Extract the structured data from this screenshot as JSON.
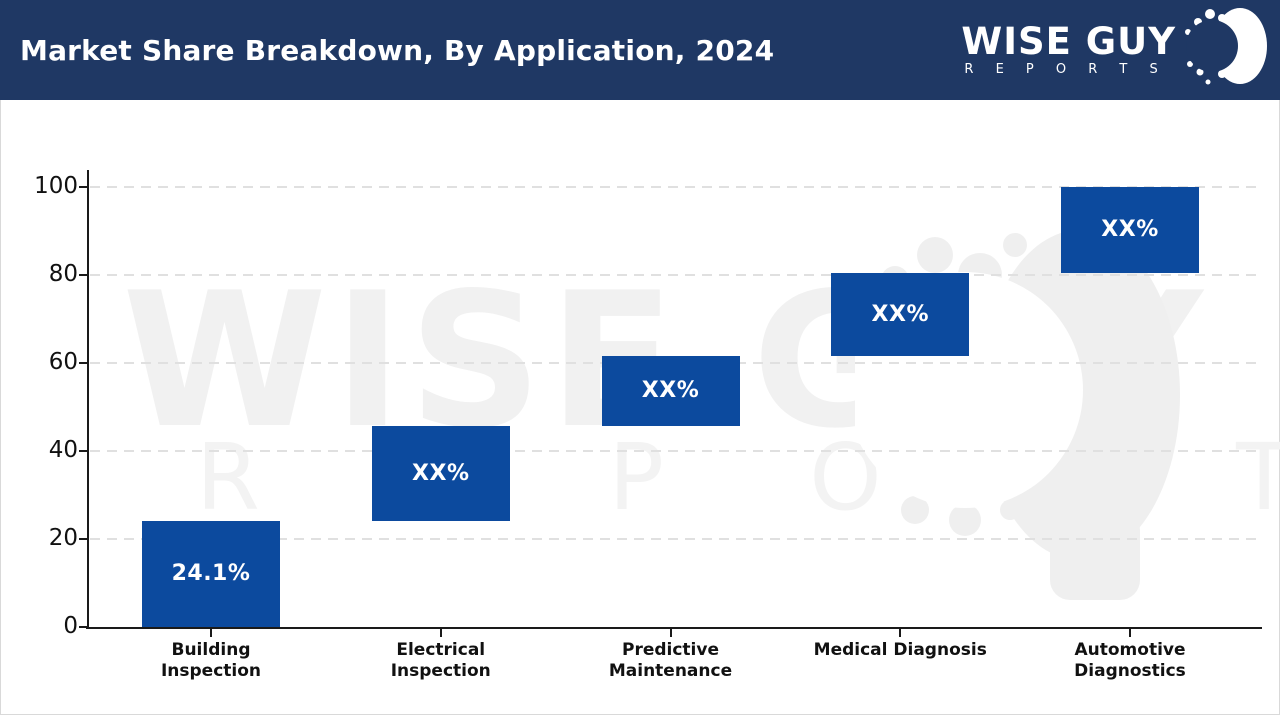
{
  "header": {
    "title": "Market Share Breakdown, By Application, 2024",
    "bg_color": "#1f3864",
    "logo": {
      "line1": "WISE GUY",
      "line2": "R E P O R T S"
    }
  },
  "watermark": {
    "line1": "WISE GUY",
    "line2": "R E P O R T S"
  },
  "chart_data": {
    "type": "bar",
    "subtype": "waterfall",
    "title": "Market Share Breakdown, By Application, 2024",
    "categories": [
      "Building Inspection",
      "Electrical Inspection",
      "Predictive Maintenance",
      "Medical Diagnosis",
      "Automotive Diagnostics"
    ],
    "category_lines": [
      [
        "Building",
        "Inspection"
      ],
      [
        "Electrical",
        "Inspection"
      ],
      [
        "Predictive",
        "Maintenance"
      ],
      [
        "Medical Diagnosis"
      ],
      [
        "Automotive",
        "Diagnostics"
      ]
    ],
    "segments": [
      {
        "category": "Building Inspection",
        "start": 0,
        "end": 24.1,
        "label": "24.1%"
      },
      {
        "category": "Electrical Inspection",
        "start": 24.1,
        "end": 45.7,
        "label": "XX%"
      },
      {
        "category": "Predictive Maintenance",
        "start": 45.7,
        "end": 61.6,
        "label": "XX%"
      },
      {
        "category": "Medical Diagnosis",
        "start": 61.6,
        "end": 80.5,
        "label": "XX%"
      },
      {
        "category": "Automotive Diagnostics",
        "start": 80.5,
        "end": 100,
        "label": "XX%"
      }
    ],
    "xlabel": "",
    "ylabel": "",
    "ylim": [
      0,
      104
    ],
    "yticks": [
      0,
      20,
      40,
      60,
      80,
      100
    ],
    "grid": {
      "axis": "y",
      "style": "dashed",
      "color": "#e0e0e0"
    },
    "legend": "none",
    "bar_color": "#0c4a9e",
    "bar_label_color": "#ffffff",
    "axis_color": "#1a1a1a"
  }
}
